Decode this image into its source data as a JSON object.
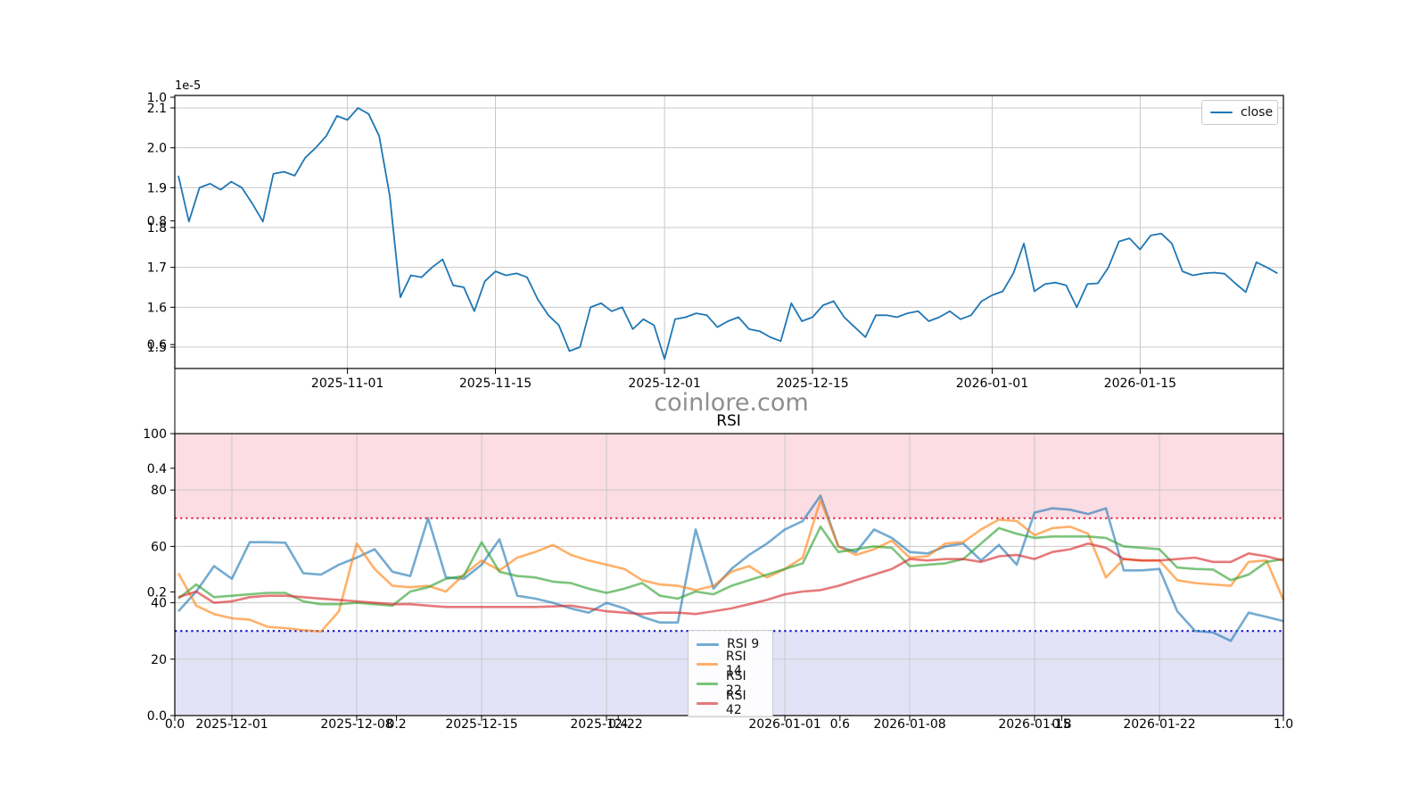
{
  "ui": {
    "watermark": "coinlore.com",
    "rsi_title": "RSI",
    "offset_label": "1e-5",
    "price_legend": {
      "label": "close",
      "color": "#1f77b4"
    },
    "rsi_legend": {
      "items": [
        {
          "label": "RSI 9",
          "color": "#1f77b4"
        },
        {
          "label": "RSI 14",
          "color": "#ff7f0e"
        },
        {
          "label": "RSI 22",
          "color": "#2ca02c"
        },
        {
          "label": "RSI 42",
          "color": "#d62728"
        }
      ]
    }
  },
  "colors": {
    "grid": "#c9c9c9",
    "spine": "#000000",
    "watermark_grey": "#8e8e8e",
    "overbought_band": "#fbdde3",
    "oversold_band": "#e3e3f8",
    "overbought_line": "#e82e50",
    "oversold_line": "#1414cc"
  },
  "overlay_axis": {
    "y_tick_labels": [
      "1.0",
      "0.8",
      "0.6",
      "0.4",
      "0.2",
      "0.0"
    ],
    "x_tick_labels": [
      "0.0",
      "0.2",
      "0.4",
      "0.6",
      "0.8",
      "1.0"
    ]
  },
  "chart_data": [
    {
      "type": "line",
      "name": "price",
      "title": "",
      "ylabel_offset": "1e-5",
      "ylim": [
        1.446,
        2.131
      ],
      "grid": true,
      "legend_position": "upper right",
      "y_tick_labels": [
        "2.1",
        "2.0",
        "1.9",
        "1.8",
        "1.7",
        "1.6",
        "1.5"
      ],
      "x_tick_labels": [
        "2025-11-01",
        "2025-11-15",
        "2025-12-01",
        "2025-12-15",
        "2026-01-01",
        "2026-01-15"
      ],
      "series": [
        {
          "name": "close",
          "color": "#1f77b4",
          "unit_scale": "1e-5",
          "start_date": "2025-10-16",
          "frequency": "daily",
          "values": [
            1.93,
            1.815,
            1.9,
            1.91,
            1.895,
            1.915,
            1.9,
            1.86,
            1.815,
            1.935,
            1.94,
            1.93,
            1.975,
            2.0,
            2.03,
            2.08,
            2.07,
            2.1,
            2.085,
            2.03,
            1.88,
            1.625,
            1.68,
            1.675,
            1.7,
            1.72,
            1.655,
            1.65,
            1.59,
            1.665,
            1.69,
            1.68,
            1.685,
            1.675,
            1.62,
            1.58,
            1.555,
            1.49,
            1.5,
            1.6,
            1.61,
            1.59,
            1.6,
            1.545,
            1.57,
            1.555,
            1.47,
            1.57,
            1.575,
            1.585,
            1.58,
            1.55,
            1.565,
            1.575,
            1.545,
            1.54,
            1.525,
            1.515,
            1.61,
            1.565,
            1.575,
            1.605,
            1.615,
            1.575,
            1.55,
            1.525,
            1.58,
            1.58,
            1.575,
            1.585,
            1.59,
            1.565,
            1.575,
            1.59,
            1.57,
            1.58,
            1.615,
            1.63,
            1.64,
            1.685,
            1.76,
            1.64,
            1.658,
            1.662,
            1.655,
            1.6,
            1.658,
            1.66,
            1.7,
            1.765,
            1.773,
            1.745,
            1.78,
            1.785,
            1.76,
            1.69,
            1.68,
            1.685,
            1.687,
            1.684,
            1.66,
            1.638,
            1.713,
            1.7,
            1.685
          ]
        }
      ]
    },
    {
      "type": "line",
      "name": "rsi",
      "title": "RSI",
      "ylim": [
        0,
        100
      ],
      "grid": true,
      "legend_position": "lower center",
      "y_tick_labels": [
        "100",
        "80",
        "60",
        "40",
        "20"
      ],
      "x_tick_labels": [
        "2025-12-01",
        "2025-12-08",
        "2025-12-15",
        "2025-12-22",
        "2026-01-01",
        "2026-01-08",
        "2026-01-15",
        "2026-01-22"
      ],
      "bands": [
        {
          "range": [
            70,
            100
          ],
          "meaning": "overbought"
        },
        {
          "range": [
            0,
            30
          ],
          "meaning": "oversold"
        }
      ],
      "threshold_lines": [
        {
          "y": 70,
          "style": "dotted",
          "color": "#e82e50"
        },
        {
          "y": 30,
          "style": "dotted",
          "color": "#1414cc"
        }
      ],
      "start_date": "2025-11-28",
      "frequency": "daily",
      "series": [
        {
          "name": "RSI 9",
          "color": "#1f77b4",
          "values": [
            37,
            44,
            53,
            48.5,
            61.5,
            61.5,
            61.3,
            50.5,
            50,
            53.5,
            56,
            59,
            51,
            49.5,
            70,
            49,
            48.5,
            53.5,
            62.5,
            42.5,
            41.5,
            40,
            38,
            36.5,
            40,
            38,
            35,
            33,
            33,
            66,
            45,
            52,
            57,
            61,
            66,
            69,
            78,
            60,
            58,
            66,
            63,
            58,
            57.5,
            60,
            61,
            55,
            60.5,
            53.5,
            72,
            73.5,
            73,
            71.5,
            73.5,
            51.5,
            51.5,
            52,
            37,
            30,
            29.5,
            26.5,
            36.5,
            35,
            33.5
          ]
        },
        {
          "name": "RSI 14",
          "color": "#ff7f0e",
          "values": [
            50.5,
            39,
            36,
            34.5,
            34,
            31.5,
            31,
            30.3,
            29.8,
            37,
            61,
            52,
            46,
            45.5,
            46,
            44,
            50,
            55,
            51.5,
            56,
            58,
            60.5,
            57,
            55,
            53.5,
            52,
            48,
            46.5,
            46,
            44.5,
            46,
            51,
            53,
            49,
            52,
            56,
            76.5,
            60,
            57,
            59,
            62,
            56,
            56.5,
            61,
            61.5,
            66,
            69.5,
            69,
            64,
            66.5,
            67,
            64.5,
            49,
            55.5,
            55,
            55,
            48,
            47,
            46.5,
            46,
            54.5,
            55,
            41
          ]
        },
        {
          "name": "RSI 22",
          "color": "#2ca02c",
          "values": [
            41.5,
            46.5,
            42,
            42.5,
            43,
            43.5,
            43.5,
            40.5,
            39.5,
            39.5,
            40,
            39.5,
            39,
            44,
            45.5,
            48.5,
            49.5,
            61.5,
            51,
            49.5,
            49,
            47.5,
            47,
            45,
            43.5,
            45,
            47,
            42.5,
            41.5,
            44,
            43,
            46,
            48,
            50,
            52,
            54,
            67,
            58,
            59,
            60,
            59.5,
            53,
            53.5,
            54,
            55.5,
            61,
            66.5,
            64.5,
            63,
            63.5,
            63.5,
            63.5,
            63,
            60,
            59.5,
            59,
            52.5,
            52,
            51.8,
            48,
            50,
            54.5,
            55.5
          ]
        },
        {
          "name": "RSI 42",
          "color": "#d62728",
          "values": [
            42,
            44,
            40,
            40.5,
            42,
            42.5,
            42.5,
            42,
            41.5,
            41,
            40.5,
            40,
            39.5,
            39.5,
            39,
            38.5,
            38.5,
            38.5,
            38.5,
            38.5,
            38.5,
            38.7,
            39,
            38,
            37,
            36.5,
            36,
            36.5,
            36.5,
            36,
            37,
            38,
            39.5,
            41,
            43,
            44,
            44.5,
            46,
            48,
            50,
            52,
            55.5,
            55,
            55.5,
            55.5,
            54.5,
            56.5,
            57,
            55.5,
            58,
            59,
            61,
            59.5,
            55.5,
            55,
            55,
            55.5,
            56,
            54.5,
            54.5,
            57.5,
            56.5,
            55
          ]
        }
      ]
    }
  ]
}
